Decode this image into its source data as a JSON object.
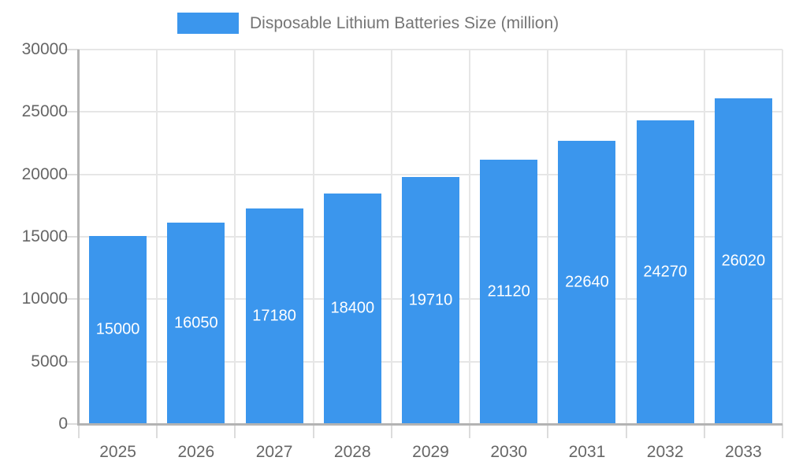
{
  "legend": {
    "label": "Disposable Lithium Batteries Size (million)"
  },
  "colors": {
    "bar": "#3B96ED",
    "grid": "#E6E6E6",
    "axis": "#B3B3B3",
    "tick": "#DCDCDC",
    "tick_text": "#666666",
    "legend_text": "#757575",
    "value_label": "#FFFFFF",
    "background": "#FFFFFF"
  },
  "chart_data": {
    "type": "bar",
    "series_name": "Disposable Lithium Batteries Size (million)",
    "categories": [
      "2025",
      "2026",
      "2027",
      "2028",
      "2029",
      "2030",
      "2031",
      "2032",
      "2033"
    ],
    "values": [
      15000,
      16050,
      17180,
      18400,
      19710,
      21120,
      22640,
      24270,
      26020
    ],
    "bar_labels": [
      "15000",
      "16050",
      "17180",
      "18400",
      "19710",
      "21120",
      "22640",
      "24270",
      "26020"
    ],
    "title": "",
    "xlabel": "",
    "ylabel": "",
    "ylim": [
      0,
      30000
    ],
    "yticks": [
      0,
      5000,
      10000,
      15000,
      20000,
      25000,
      30000
    ],
    "ytick_labels": [
      "0",
      "5000",
      "10000",
      "15000",
      "20000",
      "25000",
      "30000"
    ],
    "grid": true,
    "legend_position": "top"
  }
}
